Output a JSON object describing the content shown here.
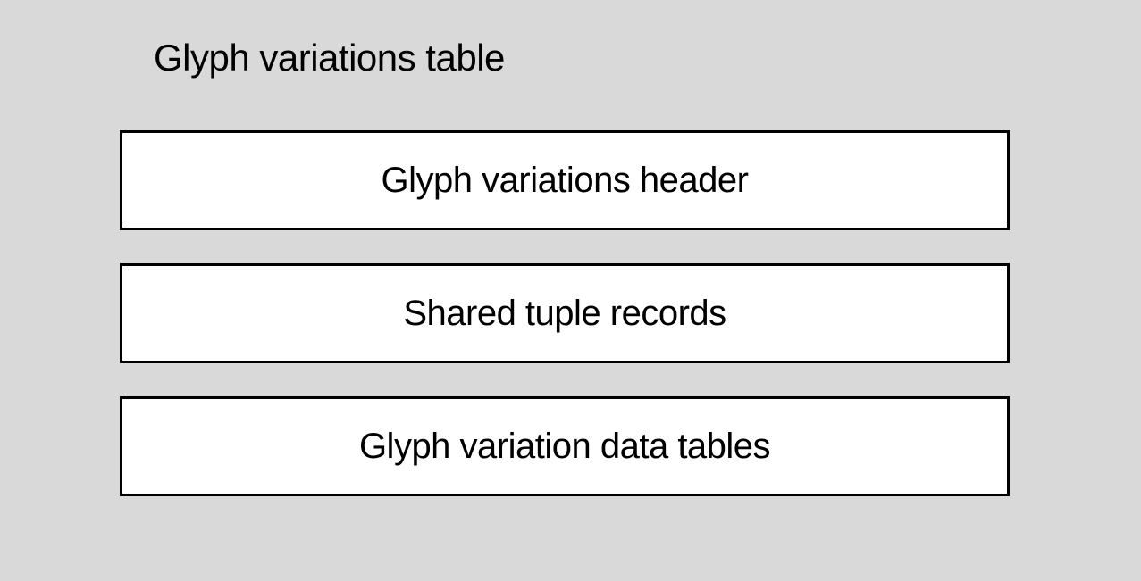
{
  "diagram": {
    "title": "Glyph variations table",
    "boxes": [
      {
        "label": "Glyph variations header"
      },
      {
        "label": "Shared tuple records"
      },
      {
        "label": "Glyph variation data tables"
      }
    ]
  },
  "colors": {
    "background": "#d9d9d9",
    "box_fill": "#ffffff",
    "box_border": "#000000",
    "text": "#000000"
  }
}
